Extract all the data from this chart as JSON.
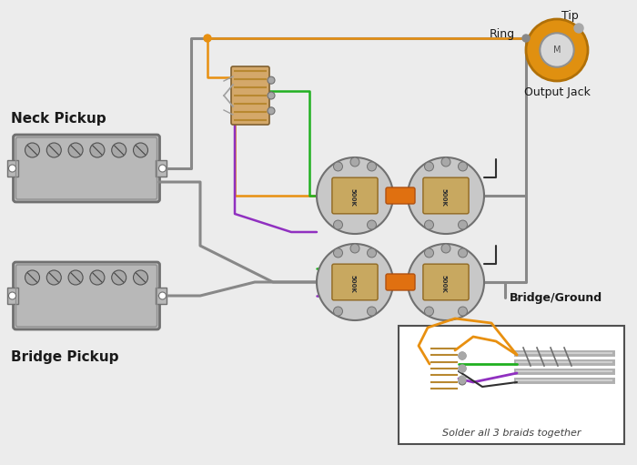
{
  "bg_color": "#ececec",
  "neck_pickup_label": "Neck Pickup",
  "bridge_pickup_label": "Bridge Pickup",
  "output_jack_label": "Output Jack",
  "tip_label": "Tip",
  "ring_label": "Ring",
  "bridge_ground_label": "Bridge/Ground",
  "solder_label": "Solder all 3 braids together",
  "pickup_fill": "#b8b8b8",
  "pickup_dark": "#909090",
  "pickup_border": "#707070",
  "coil_fill": "#d4a86a",
  "coil_stripe": "#b88830",
  "pot_fill": "#c8c8c8",
  "pot_border": "#707070",
  "pot_pcb": "#c8a860",
  "pot_pcb_border": "#906820",
  "cap_fill": "#e07010",
  "cap_border": "#b05010",
  "wire_gray": "#888888",
  "wire_orange": "#e89010",
  "wire_green": "#20b020",
  "wire_purple": "#9030c0",
  "wire_black": "#303030",
  "jack_outer": "#e09010",
  "jack_inner_fill": "#d8d8d8",
  "jack_inner_border": "#909090",
  "note_box_fill": "#ffffff",
  "note_box_border": "#505050",
  "text_dark": "#1a1a1a",
  "screw_fill": "#a8a8a8",
  "screw_border": "#505050",
  "terminal_dot": "#a8a8a8"
}
